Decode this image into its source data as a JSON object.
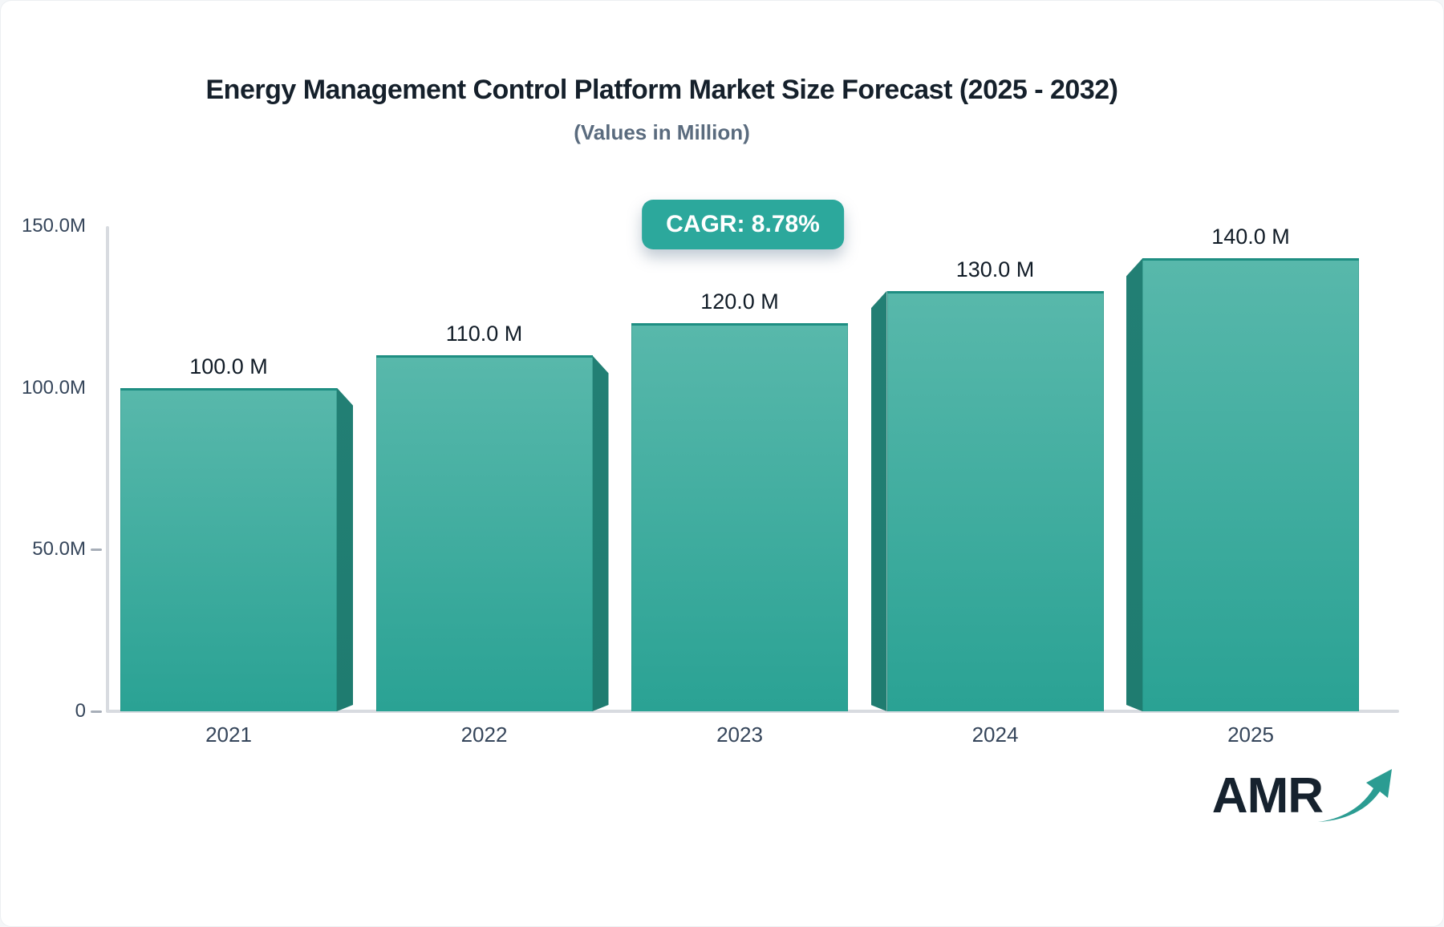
{
  "chart_data": {
    "type": "bar",
    "title": "Energy Management Control Platform Market Size Forecast (2025 - 2032)",
    "subtitle": "(Values in Million)",
    "badge_label": "CAGR: 8.78%",
    "categories": [
      "2021",
      "2022",
      "2023",
      "2024",
      "2025"
    ],
    "values": [
      100,
      110,
      120,
      130,
      140
    ],
    "bar_labels": [
      "100.0 M",
      "110.0 M",
      "120.0 M",
      "130.0 M",
      "140.0 M"
    ],
    "unit": "Million",
    "xlabel": "",
    "ylabel": "",
    "ylim": [
      0,
      150
    ],
    "y_ticks": [
      {
        "label": "150.0M",
        "value": 150,
        "dash": false
      },
      {
        "label": "100.0M",
        "value": 100,
        "dash": false
      },
      {
        "label": "50.0M",
        "value": 50,
        "dash": true
      },
      {
        "label": "0",
        "value": 0,
        "dash": true
      }
    ],
    "grid": false,
    "legend": false
  },
  "colors": {
    "bar_face_top": "#58b8ab",
    "bar_face_bottom": "#2aa294",
    "bar_side": "#1f7c70",
    "bar_top_edge": "#1e8e82",
    "badge_bg": "#2ca89c",
    "badge_text": "#ffffff",
    "title": "#15202b",
    "subtitle": "#5a6b7e",
    "axis_label": "#35455a",
    "axis_line": "#d8dbe0",
    "logo_text": "#16222e",
    "logo_arrow": "#2b9c92"
  },
  "logo": {
    "text": "AMR"
  }
}
